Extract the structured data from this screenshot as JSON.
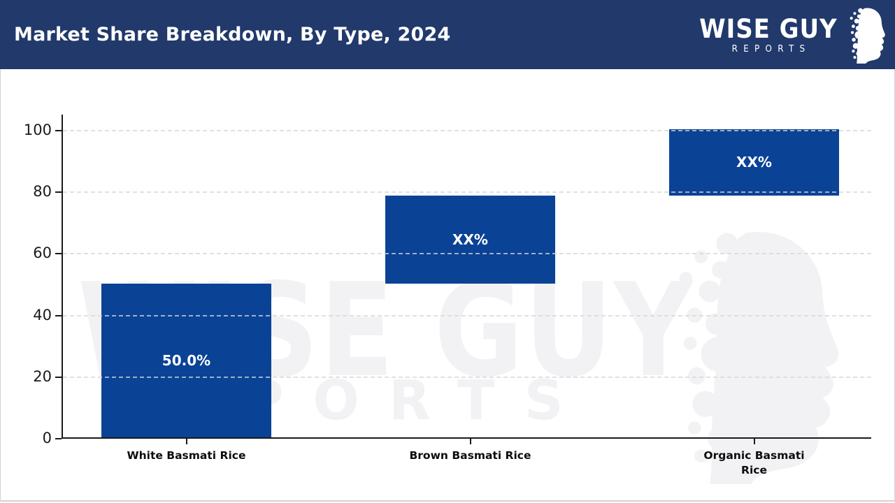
{
  "header": {
    "title": "Market Share Breakdown, By Type, 2024",
    "background": "#21396B",
    "logo": {
      "line1": "WISE GUY",
      "line2": "REPORTS"
    }
  },
  "watermark": {
    "line1": "WISE GUY",
    "line2": "REPORTS"
  },
  "chart_data": {
    "type": "bar",
    "subtype": "waterfall-floating-bars",
    "title": "Market Share Breakdown, By Type, 2024",
    "categories": [
      "White Basmati Rice",
      "Brown Basmati Rice",
      "Organic Basmati Rice"
    ],
    "segments": [
      {
        "category": "White Basmati Rice",
        "start": 0,
        "end": 50,
        "label": "50.0%"
      },
      {
        "category": "Brown Basmati Rice",
        "start": 50,
        "end": 78.5,
        "label": "XX%"
      },
      {
        "category": "Organic Basmati Rice",
        "start": 78.5,
        "end": 100,
        "label": "XX%"
      }
    ],
    "xlabel": "",
    "ylabel": "",
    "ylim": [
      0,
      100
    ],
    "yticks": [
      0,
      20,
      40,
      60,
      80,
      100
    ],
    "grid": "horizontal-dashed",
    "legend": "none",
    "bar_color": "#0A4296",
    "bar_value_label_color": "#FFFFFF",
    "grid_color": "#DCDCDC",
    "axis_color": "#1A1A1A"
  }
}
